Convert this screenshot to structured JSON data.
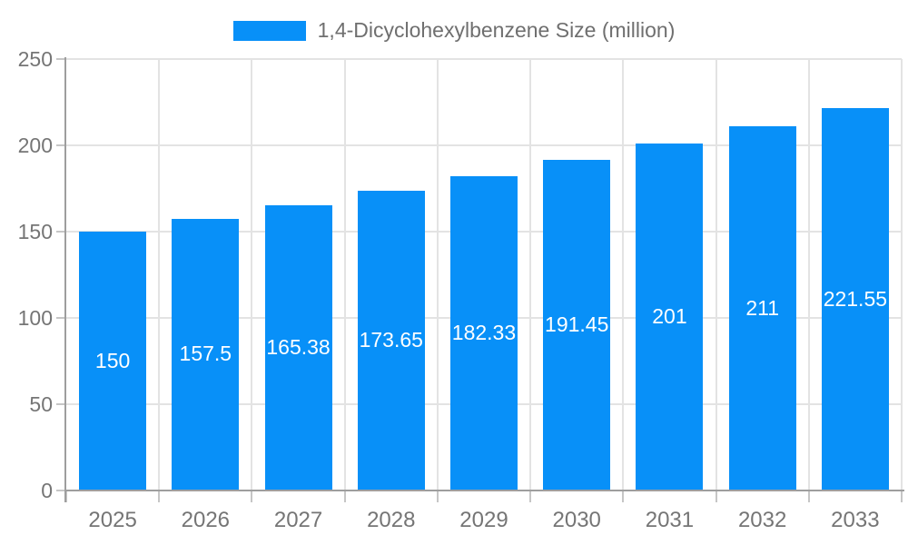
{
  "legend": {
    "label": "1,4-Dicyclohexylbenzene Size (million)"
  },
  "chart_data": {
    "type": "bar",
    "title": "1,4-Dicyclohexylbenzene Size (million)",
    "categories": [
      "2025",
      "2026",
      "2027",
      "2028",
      "2029",
      "2030",
      "2031",
      "2032",
      "2033"
    ],
    "values": [
      150,
      157.5,
      165.38,
      173.65,
      182.33,
      191.45,
      201,
      211,
      221.55
    ],
    "value_labels": [
      "150",
      "157.5",
      "165.38",
      "173.65",
      "182.33",
      "191.45",
      "201",
      "211",
      "221.55"
    ],
    "xlabel": "",
    "ylabel": "",
    "ylim": [
      0,
      250
    ],
    "y_ticks": [
      0,
      50,
      100,
      150,
      200,
      250
    ],
    "grid": true,
    "legend_position": "top",
    "colors": {
      "bar": "#0890f8",
      "bar_label_text": "#ffffff",
      "axis_text": "#757575",
      "legend_text": "#6f6f6f",
      "grid_line": "#e3e3e3",
      "axis_line": "#9e9e9e",
      "tick_line": "#c6c6c6"
    }
  }
}
